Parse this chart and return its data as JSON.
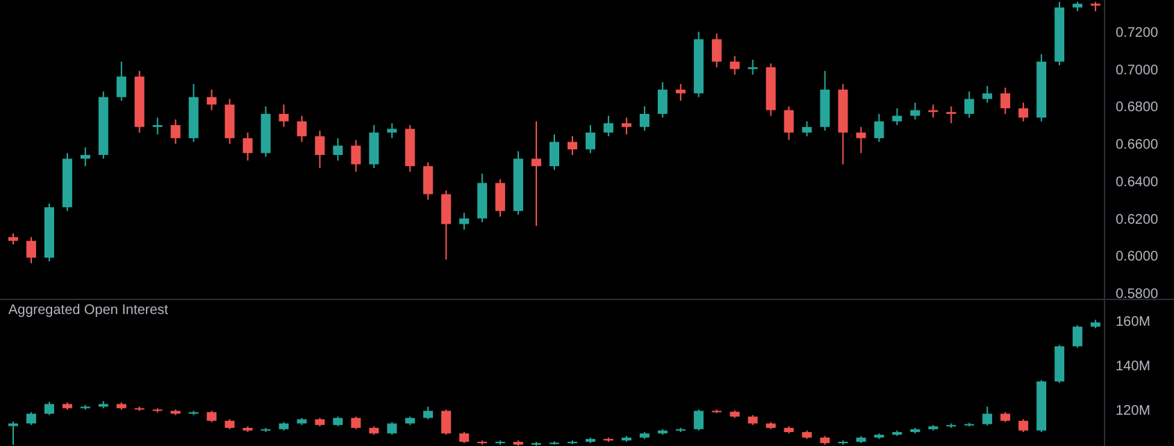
{
  "chart_data": [
    {
      "type": "candlestick",
      "tick_labels": "y",
      "categories": [
        null,
        null,
        null,
        null,
        null,
        null,
        null,
        null,
        null,
        null,
        null,
        null,
        null,
        null,
        null,
        null,
        null,
        null,
        null,
        null,
        null,
        null,
        null,
        null,
        null,
        null,
        null,
        null,
        null,
        null,
        null,
        null,
        null,
        null,
        null,
        null,
        null,
        null,
        null,
        null,
        null,
        null,
        null,
        null,
        null,
        null,
        null,
        null,
        null,
        null,
        null,
        null,
        null,
        null,
        null,
        null,
        null,
        null,
        null,
        null,
        null
      ],
      "ohlc": [
        [
          0.61,
          0.612,
          0.606,
          0.608
        ],
        [
          0.608,
          0.61,
          0.596,
          0.599
        ],
        [
          0.599,
          0.628,
          0.597,
          0.626
        ],
        [
          0.626,
          0.655,
          0.624,
          0.652
        ],
        [
          0.652,
          0.658,
          0.648,
          0.654
        ],
        [
          0.654,
          0.688,
          0.652,
          0.685
        ],
        [
          0.685,
          0.704,
          0.683,
          0.696
        ],
        [
          0.696,
          0.699,
          0.666,
          0.669
        ],
        [
          0.669,
          0.674,
          0.665,
          0.67
        ],
        [
          0.67,
          0.673,
          0.66,
          0.663
        ],
        [
          0.663,
          0.692,
          0.661,
          0.685
        ],
        [
          0.685,
          0.689,
          0.678,
          0.681
        ],
        [
          0.681,
          0.684,
          0.66,
          0.663
        ],
        [
          0.663,
          0.666,
          0.651,
          0.655
        ],
        [
          0.655,
          0.68,
          0.653,
          0.676
        ],
        [
          0.676,
          0.681,
          0.669,
          0.672
        ],
        [
          0.672,
          0.675,
          0.661,
          0.664
        ],
        [
          0.664,
          0.667,
          0.647,
          0.654
        ],
        [
          0.654,
          0.663,
          0.651,
          0.659
        ],
        [
          0.659,
          0.662,
          0.645,
          0.649
        ],
        [
          0.649,
          0.67,
          0.647,
          0.666
        ],
        [
          0.666,
          0.671,
          0.663,
          0.668
        ],
        [
          0.668,
          0.67,
          0.645,
          0.648
        ],
        [
          0.648,
          0.65,
          0.63,
          0.633
        ],
        [
          0.633,
          0.635,
          0.598,
          0.617
        ],
        [
          0.617,
          0.623,
          0.614,
          0.62
        ],
        [
          0.62,
          0.644,
          0.618,
          0.639
        ],
        [
          0.639,
          0.641,
          0.621,
          0.624
        ],
        [
          0.624,
          0.656,
          0.622,
          0.652
        ],
        [
          0.652,
          0.672,
          0.616,
          0.648
        ],
        [
          0.648,
          0.665,
          0.646,
          0.661
        ],
        [
          0.661,
          0.664,
          0.654,
          0.657
        ],
        [
          0.657,
          0.67,
          0.655,
          0.666
        ],
        [
          0.666,
          0.675,
          0.664,
          0.671
        ],
        [
          0.671,
          0.674,
          0.665,
          0.669
        ],
        [
          0.669,
          0.68,
          0.667,
          0.676
        ],
        [
          0.676,
          0.693,
          0.674,
          0.689
        ],
        [
          0.689,
          0.692,
          0.683,
          0.687
        ],
        [
          0.687,
          0.72,
          0.685,
          0.716
        ],
        [
          0.716,
          0.719,
          0.701,
          0.704
        ],
        [
          0.704,
          0.707,
          0.697,
          0.7
        ],
        [
          0.7,
          0.705,
          0.697,
          0.701
        ],
        [
          0.701,
          0.703,
          0.675,
          0.678
        ],
        [
          0.678,
          0.68,
          0.662,
          0.666
        ],
        [
          0.666,
          0.672,
          0.664,
          0.669
        ],
        [
          0.669,
          0.699,
          0.667,
          0.689
        ],
        [
          0.689,
          0.692,
          0.649,
          0.666
        ],
        [
          0.666,
          0.669,
          0.655,
          0.663
        ],
        [
          0.663,
          0.676,
          0.661,
          0.672
        ],
        [
          0.672,
          0.679,
          0.67,
          0.675
        ],
        [
          0.675,
          0.682,
          0.673,
          0.678
        ],
        [
          0.678,
          0.681,
          0.674,
          0.677
        ],
        [
          0.677,
          0.68,
          0.671,
          0.676
        ],
        [
          0.676,
          0.688,
          0.674,
          0.684
        ],
        [
          0.684,
          0.691,
          0.682,
          0.687
        ],
        [
          0.687,
          0.69,
          0.676,
          0.679
        ],
        [
          0.679,
          0.682,
          0.672,
          0.674
        ],
        [
          0.674,
          0.708,
          0.672,
          0.704
        ],
        [
          0.704,
          0.736,
          0.702,
          0.733
        ],
        [
          0.733,
          0.736,
          0.731,
          0.735
        ],
        [
          0.735,
          0.736,
          0.731,
          0.734
        ]
      ],
      "ylim": [
        0.577,
        0.737
      ],
      "yticks": [
        {
          "value": 0.58,
          "label": "0.5800"
        },
        {
          "value": 0.6,
          "label": "0.6000"
        },
        {
          "value": 0.62,
          "label": "0.6200"
        },
        {
          "value": 0.64,
          "label": "0.6400"
        },
        {
          "value": 0.66,
          "label": "0.6600"
        },
        {
          "value": 0.68,
          "label": "0.6800"
        },
        {
          "value": 0.7,
          "label": "0.7000"
        },
        {
          "value": 0.72,
          "label": "0.7200"
        }
      ]
    },
    {
      "type": "candlestick",
      "title": "Aggregated Open Interest",
      "tick_labels": "y",
      "categories": [
        null,
        null,
        null,
        null,
        null,
        null,
        null,
        null,
        null,
        null,
        null,
        null,
        null,
        null,
        null,
        null,
        null,
        null,
        null,
        null,
        null,
        null,
        null,
        null,
        null,
        null,
        null,
        null,
        null,
        null,
        null,
        null,
        null,
        null,
        null,
        null,
        null,
        null,
        null,
        null,
        null,
        null,
        null,
        null,
        null,
        null,
        null,
        null,
        null,
        null,
        null,
        null,
        null,
        null,
        null,
        null,
        null,
        null,
        null,
        null,
        null
      ],
      "ohlc": [
        [
          112.5,
          114.5,
          104.0,
          113.7
        ],
        [
          113.7,
          118.8,
          113.0,
          118.1
        ],
        [
          118.1,
          123.5,
          117.5,
          122.5
        ],
        [
          122.5,
          123.2,
          119.9,
          120.6
        ],
        [
          120.6,
          122.0,
          119.9,
          121.3
        ],
        [
          121.3,
          123.8,
          120.6,
          122.5
        ],
        [
          122.5,
          123.2,
          119.9,
          120.6
        ],
        [
          120.6,
          121.3,
          119.4,
          120.0
        ],
        [
          120.0,
          120.6,
          118.7,
          119.4
        ],
        [
          119.4,
          120.0,
          117.5,
          118.1
        ],
        [
          118.1,
          119.4,
          117.5,
          118.8
        ],
        [
          118.8,
          119.4,
          114.3,
          114.9
        ],
        [
          114.9,
          115.6,
          111.1,
          111.7
        ],
        [
          111.7,
          112.4,
          109.8,
          110.5
        ],
        [
          110.5,
          111.7,
          109.8,
          111.1
        ],
        [
          111.1,
          114.3,
          110.5,
          113.7
        ],
        [
          113.7,
          116.2,
          113.0,
          115.6
        ],
        [
          115.6,
          116.2,
          112.4,
          113.0
        ],
        [
          113.0,
          116.8,
          112.4,
          116.2
        ],
        [
          116.2,
          116.8,
          111.1,
          111.7
        ],
        [
          111.7,
          112.4,
          108.6,
          109.2
        ],
        [
          109.2,
          114.3,
          108.6,
          113.7
        ],
        [
          113.7,
          116.8,
          113.0,
          116.2
        ],
        [
          116.2,
          121.3,
          115.6,
          119.4
        ],
        [
          119.4,
          120.0,
          108.6,
          109.2
        ],
        [
          109.2,
          109.8,
          104.8,
          105.4
        ],
        [
          105.4,
          106.0,
          104.1,
          104.8
        ],
        [
          104.8,
          106.0,
          104.1,
          105.4
        ],
        [
          105.4,
          106.0,
          103.6,
          104.1
        ],
        [
          104.1,
          105.4,
          103.6,
          104.8
        ],
        [
          104.8,
          105.6,
          104.1,
          105.0
        ],
        [
          105.0,
          106.0,
          104.4,
          105.4
        ],
        [
          105.4,
          107.3,
          104.8,
          106.7
        ],
        [
          106.7,
          107.3,
          105.4,
          106.0
        ],
        [
          106.0,
          108.0,
          105.4,
          107.3
        ],
        [
          107.3,
          109.8,
          106.7,
          109.2
        ],
        [
          109.2,
          111.1,
          108.6,
          110.5
        ],
        [
          110.5,
          111.7,
          109.8,
          111.1
        ],
        [
          111.1,
          120.0,
          110.5,
          119.4
        ],
        [
          119.4,
          120.0,
          118.4,
          119.0
        ],
        [
          119.0,
          119.6,
          116.2,
          116.8
        ],
        [
          116.8,
          117.5,
          113.0,
          113.7
        ],
        [
          113.7,
          114.3,
          111.1,
          111.7
        ],
        [
          111.7,
          112.4,
          109.2,
          109.8
        ],
        [
          109.8,
          110.5,
          106.7,
          107.3
        ],
        [
          107.3,
          108.0,
          104.1,
          104.8
        ],
        [
          104.8,
          106.0,
          104.1,
          105.4
        ],
        [
          105.4,
          108.0,
          104.8,
          107.3
        ],
        [
          107.3,
          109.2,
          106.7,
          108.6
        ],
        [
          108.6,
          110.5,
          108.0,
          109.8
        ],
        [
          109.8,
          111.7,
          109.2,
          111.1
        ],
        [
          111.1,
          113.0,
          110.5,
          112.4
        ],
        [
          112.4,
          113.7,
          111.7,
          113.0
        ],
        [
          113.0,
          114.0,
          112.4,
          113.4
        ],
        [
          113.4,
          121.3,
          112.8,
          118.1
        ],
        [
          118.1,
          118.8,
          114.3,
          114.9
        ],
        [
          114.9,
          115.6,
          109.8,
          110.5
        ],
        [
          110.5,
          133.3,
          109.8,
          132.7
        ],
        [
          132.7,
          149.2,
          132.0,
          148.6
        ],
        [
          148.6,
          158.1,
          148.0,
          157.5
        ],
        [
          157.5,
          160.6,
          156.8,
          159.4
        ]
      ],
      "ylim": [
        103.5,
        169.5
      ],
      "yticks": [
        {
          "value": 120,
          "label": "120M"
        },
        {
          "value": 140,
          "label": "140M"
        },
        {
          "value": 160,
          "label": "160M"
        }
      ]
    }
  ]
}
